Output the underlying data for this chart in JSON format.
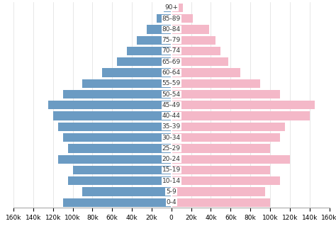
{
  "age_groups": [
    "0-4",
    "5-9",
    "10-14",
    "15-19",
    "20-24",
    "25-29",
    "30-34",
    "35-39",
    "40-44",
    "45-49",
    "50-54",
    "55-59",
    "60-64",
    "65-69",
    "70-74",
    "75-79",
    "80-84",
    "85-89",
    "90+"
  ],
  "male": [
    110000,
    90000,
    105000,
    100000,
    115000,
    105000,
    110000,
    115000,
    120000,
    125000,
    110000,
    90000,
    70000,
    55000,
    45000,
    35000,
    25000,
    15000,
    8000
  ],
  "female": [
    100000,
    95000,
    110000,
    100000,
    120000,
    100000,
    110000,
    115000,
    140000,
    145000,
    110000,
    90000,
    70000,
    58000,
    50000,
    45000,
    38000,
    22000,
    12000
  ],
  "male_color": "#6b9bc3",
  "female_color": "#f4b8c8",
  "background_color": "#ffffff",
  "xlim": 160000,
  "tick_step": 20000,
  "bar_height": 0.8,
  "grid_color": "#dddddd",
  "tick_fontsize": 6.5,
  "label_fontsize": 6.5
}
